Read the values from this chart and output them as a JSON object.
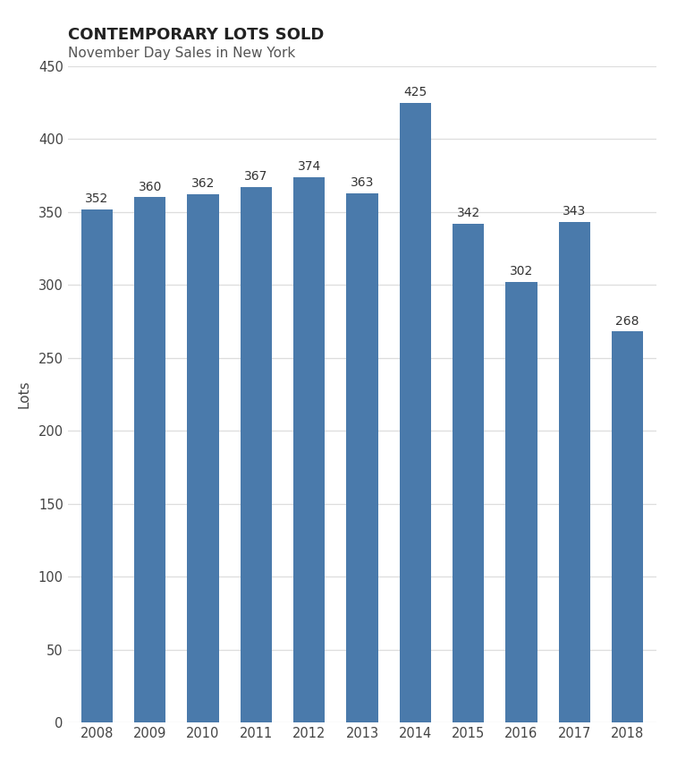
{
  "title": "CONTEMPORARY LOTS SOLD",
  "subtitle": "November Day Sales in New York",
  "years": [
    2008,
    2009,
    2010,
    2011,
    2012,
    2013,
    2014,
    2015,
    2016,
    2017,
    2018
  ],
  "values": [
    352,
    360,
    362,
    367,
    374,
    363,
    425,
    342,
    302,
    343,
    268
  ],
  "bar_color": "#4a7aab",
  "ylabel": "Lots",
  "ylim": [
    0,
    450
  ],
  "yticks": [
    0,
    50,
    100,
    150,
    200,
    250,
    300,
    350,
    400,
    450
  ],
  "background_color": "#ffffff",
  "grid_color": "#dddddd",
  "title_fontsize": 13,
  "subtitle_fontsize": 11,
  "label_fontsize": 10,
  "ylabel_fontsize": 11,
  "tick_fontsize": 10.5,
  "bar_width": 0.6
}
